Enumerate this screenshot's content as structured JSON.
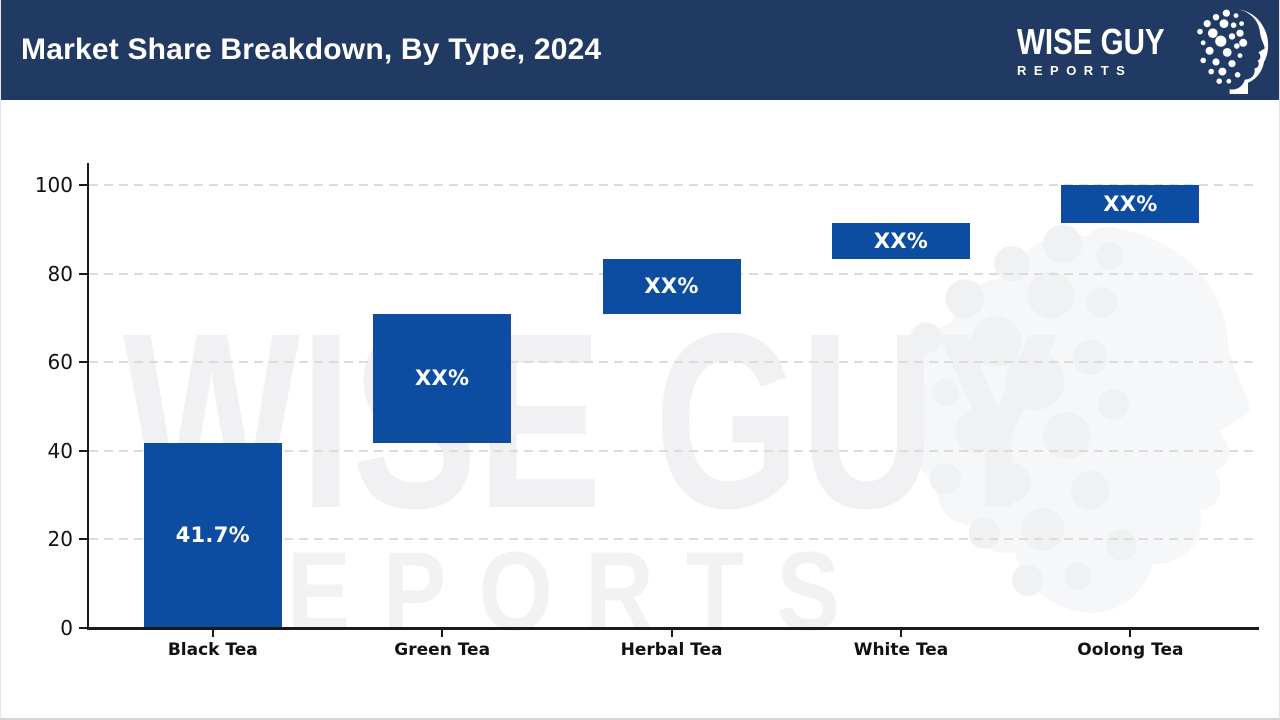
{
  "header": {
    "title": "Market Share Breakdown, By Type, 2024",
    "bg_color": "#213A63",
    "logo": {
      "line1": "WISE GUY",
      "line2": "REPORTS",
      "head_icon": "dotted-profile-head-icon"
    }
  },
  "watermark": {
    "line1": "WISE GUY",
    "line2": "REPORTS",
    "head_icon": "dotted-profile-head-icon"
  },
  "chart_data": {
    "type": "bar",
    "variant": "waterfall-floating-bars",
    "title": "Market Share Breakdown, By Type, 2024",
    "categories": [
      "Black Tea",
      "Green Tea",
      "Herbal Tea",
      "White Tea",
      "Oolong Tea"
    ],
    "segments": [
      {
        "label": "Black Tea",
        "start": 0,
        "end": 41.7,
        "display": "41.7%"
      },
      {
        "label": "Green Tea",
        "start": 41.7,
        "end": 70.9,
        "display": "XX%"
      },
      {
        "label": "Herbal Tea",
        "start": 70.9,
        "end": 83.3,
        "display": "XX%"
      },
      {
        "label": "White Tea",
        "start": 83.3,
        "end": 91.4,
        "display": "XX%"
      },
      {
        "label": "Oolong Tea",
        "start": 91.4,
        "end": 100,
        "display": "XX%"
      }
    ],
    "y_ticks": [
      0,
      20,
      40,
      60,
      80,
      100
    ],
    "ylim": [
      0,
      105
    ],
    "xlabel": "",
    "ylabel": "",
    "grid": "horizontal-dashed",
    "legend": "none",
    "bar_color": "#0C4DA2",
    "bar_label_color": "#FFFFFF",
    "axis_color": "#1a1a1a",
    "grid_color": "#dcdcdc"
  }
}
